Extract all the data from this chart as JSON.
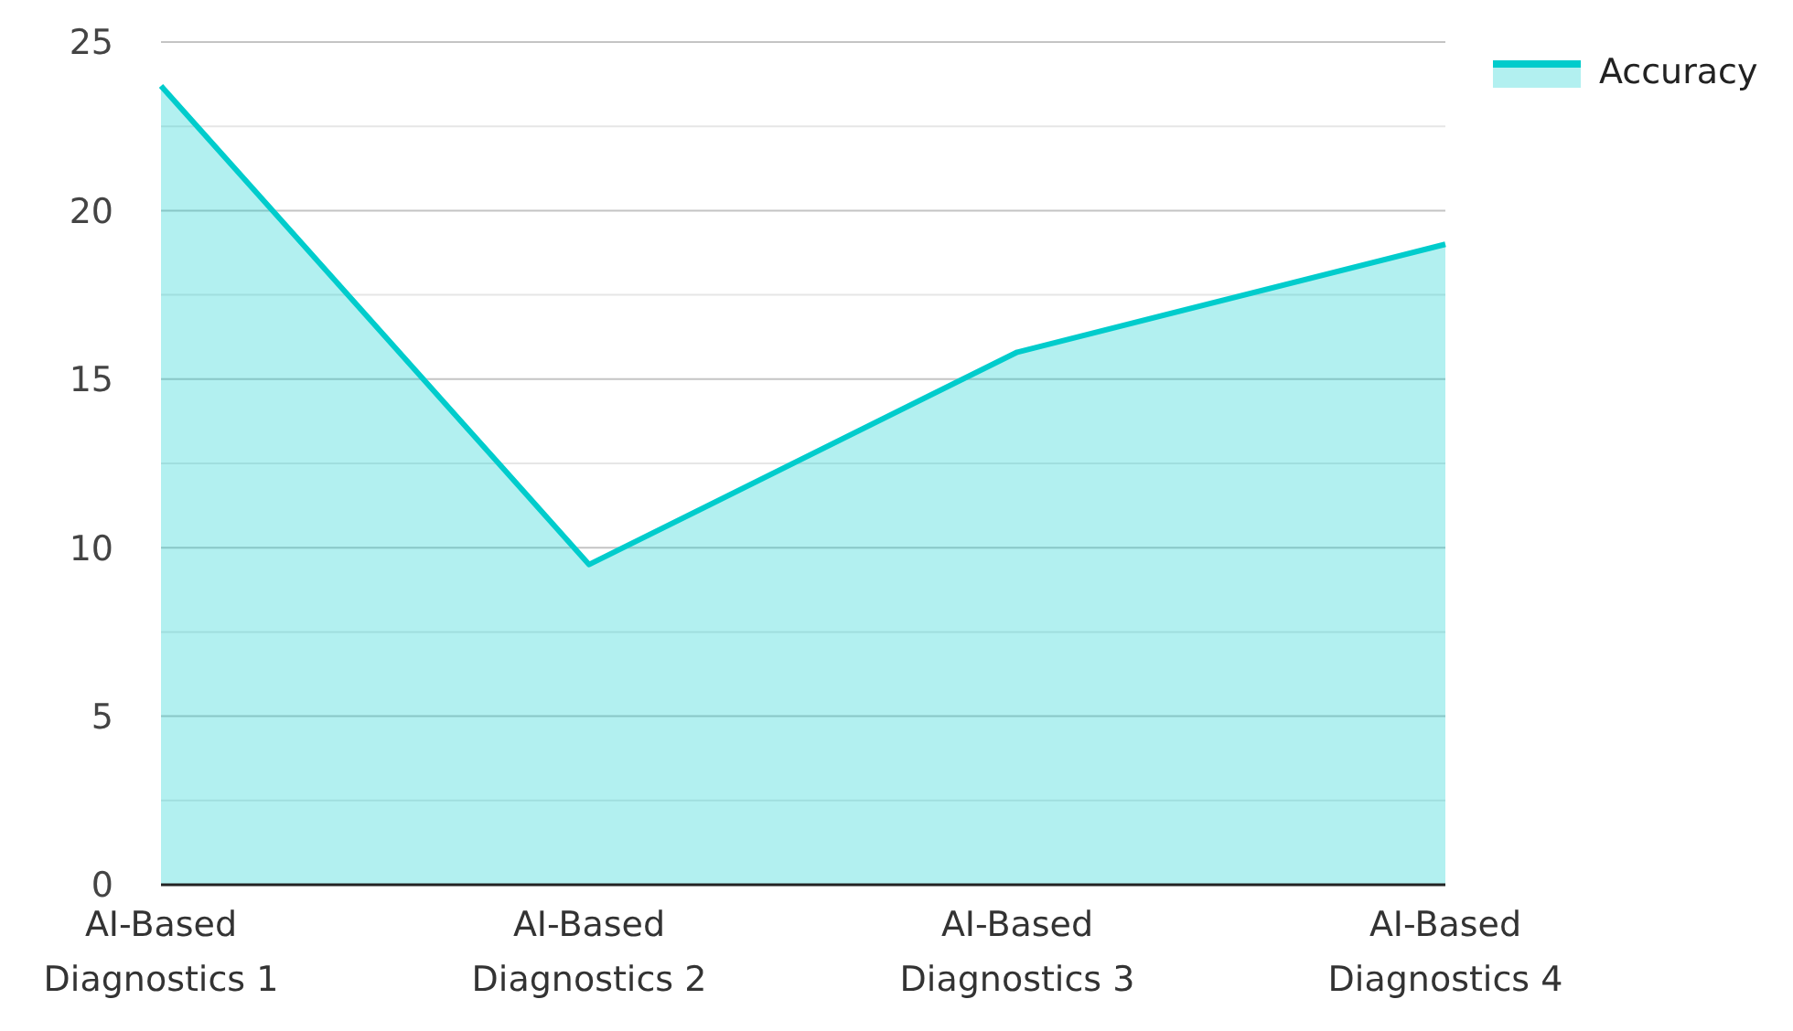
{
  "chart_data": {
    "type": "area",
    "categories": [
      "AI-Based Diagnostics 1",
      "AI-Based Diagnostics 2",
      "AI-Based Diagnostics 3",
      "AI-Based Diagnostics 4"
    ],
    "series": [
      {
        "name": "Accuracy",
        "color": "#00cccc",
        "values": [
          23.7,
          9.5,
          15.8,
          19.0
        ]
      }
    ],
    "ylim": [
      0,
      25
    ],
    "yticks": [
      0,
      {
        "value": 2.5,
        "label": null
      },
      5,
      {
        "value": 7.5,
        "label": null
      },
      10,
      {
        "value": 12.5,
        "label": null
      },
      15,
      {
        "value": 17.5,
        "label": null
      },
      20,
      {
        "value": 22.5,
        "label": null
      },
      25
    ],
    "grid": true,
    "legend": "top right"
  }
}
